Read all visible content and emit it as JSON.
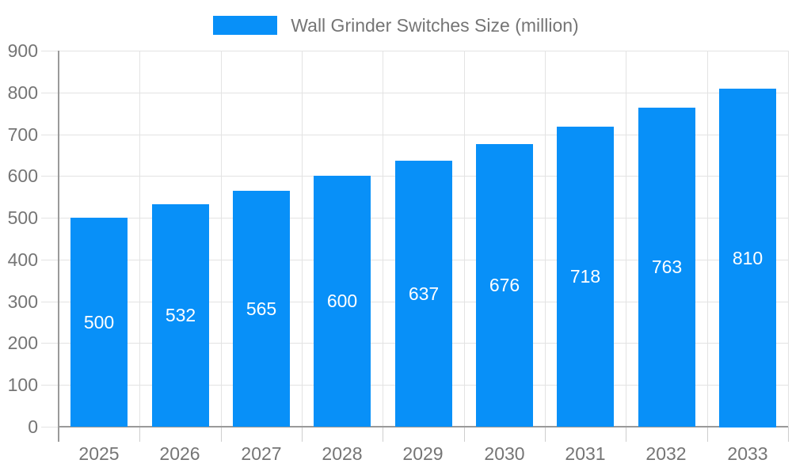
{
  "legend": {
    "label": "Wall Grinder Switches Size (million)"
  },
  "chart_data": {
    "type": "bar",
    "title": "Wall Grinder Switches Size (million)",
    "series_name": "Wall Grinder Switches Size (million)",
    "categories": [
      "2025",
      "2026",
      "2027",
      "2028",
      "2029",
      "2030",
      "2031",
      "2032",
      "2033"
    ],
    "values": [
      500,
      532,
      565,
      600,
      637,
      676,
      718,
      763,
      810
    ],
    "bar_value_labels": [
      "500",
      "532",
      "565",
      "600",
      "637",
      "676",
      "718",
      "763",
      "810"
    ],
    "xlabel": "",
    "ylabel": "",
    "ylim": [
      0,
      900
    ],
    "ytick_step": 100,
    "ytick_labels": [
      "0",
      "100",
      "200",
      "300",
      "400",
      "500",
      "600",
      "700",
      "800",
      "900"
    ],
    "grid": true,
    "legend_position": "top-center",
    "colors": {
      "bar": "#0890f8",
      "value_label": "#ffffff",
      "axis_text": "#757575",
      "gridline": "#e3e3e3",
      "tick": "#cecece",
      "axis_line": "#9a9a9a",
      "background": "#ffffff"
    }
  }
}
